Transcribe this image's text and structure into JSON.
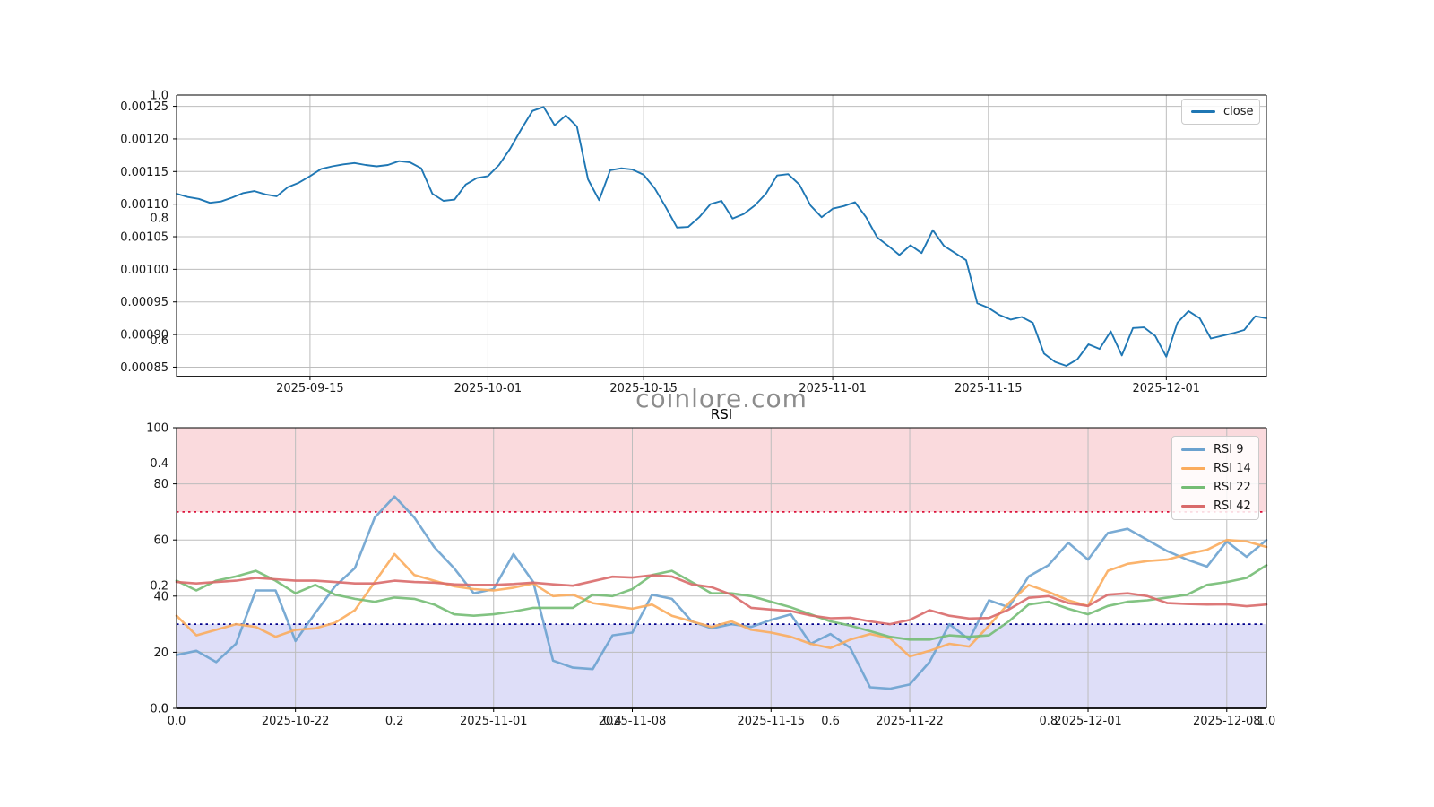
{
  "watermark": "coinlore.com",
  "overlay_axis": {
    "x_ticks": [
      "0.0",
      "0.2",
      "0.4",
      "0.6",
      "0.8",
      "1.0"
    ],
    "y_ticks": [
      "0.0",
      "0.2",
      "0.4",
      "0.6",
      "0.8",
      "1.0"
    ]
  },
  "colors": {
    "close_line": "#1f77b4",
    "rsi9_line": "#6ba2cf",
    "rsi14_line": "#fbac5d",
    "rsi22_line": "#74bd74",
    "rsi42_line": "#d96a6a",
    "overbought_fill": "#fadadd",
    "oversold_fill": "#dedef8",
    "overbought_dotted": "#dc143c",
    "oversold_dotted": "#00008b",
    "grid": "#bdbdbd"
  },
  "chart_data": [
    {
      "type": "line",
      "title": "",
      "legend_position": "upper right",
      "ylim": [
        0.0008355,
        0.0012673
      ],
      "y_ticks": [
        "0.00085",
        "0.00090",
        "0.00095",
        "0.00100",
        "0.00105",
        "0.00110",
        "0.00115",
        "0.00120",
        "0.00125"
      ],
      "x_ticks": [
        "2025-09-15",
        "2025-10-01",
        "2025-10-15",
        "2025-11-01",
        "2025-11-15",
        "2025-12-01"
      ],
      "dates": [
        "2025-09-03",
        "2025-09-04",
        "2025-09-05",
        "2025-09-06",
        "2025-09-07",
        "2025-09-08",
        "2025-09-09",
        "2025-09-10",
        "2025-09-11",
        "2025-09-12",
        "2025-09-13",
        "2025-09-14",
        "2025-09-15",
        "2025-09-16",
        "2025-09-17",
        "2025-09-18",
        "2025-09-19",
        "2025-09-20",
        "2025-09-21",
        "2025-09-22",
        "2025-09-23",
        "2025-09-24",
        "2025-09-25",
        "2025-09-26",
        "2025-09-27",
        "2025-09-28",
        "2025-09-29",
        "2025-09-30",
        "2025-10-01",
        "2025-10-02",
        "2025-10-03",
        "2025-10-04",
        "2025-10-05",
        "2025-10-06",
        "2025-10-07",
        "2025-10-08",
        "2025-10-09",
        "2025-10-10",
        "2025-10-11",
        "2025-10-12",
        "2025-10-13",
        "2025-10-14",
        "2025-10-15",
        "2025-10-16",
        "2025-10-17",
        "2025-10-18",
        "2025-10-19",
        "2025-10-20",
        "2025-10-21",
        "2025-10-22",
        "2025-10-23",
        "2025-10-24",
        "2025-10-25",
        "2025-10-26",
        "2025-10-27",
        "2025-10-28",
        "2025-10-29",
        "2025-10-30",
        "2025-10-31",
        "2025-11-01",
        "2025-11-02",
        "2025-11-03",
        "2025-11-04",
        "2025-11-05",
        "2025-11-06",
        "2025-11-07",
        "2025-11-08",
        "2025-11-09",
        "2025-11-10",
        "2025-11-11",
        "2025-11-12",
        "2025-11-13",
        "2025-11-14",
        "2025-11-15",
        "2025-11-16",
        "2025-11-17",
        "2025-11-18",
        "2025-11-19",
        "2025-11-20",
        "2025-11-21",
        "2025-11-22",
        "2025-11-23",
        "2025-11-24",
        "2025-11-25",
        "2025-11-26",
        "2025-11-27",
        "2025-11-28",
        "2025-11-29",
        "2025-11-30",
        "2025-12-01",
        "2025-12-02",
        "2025-12-03",
        "2025-12-04",
        "2025-12-05",
        "2025-12-06",
        "2025-12-07",
        "2025-12-08",
        "2025-12-09",
        "2025-12-10"
      ],
      "series": [
        {
          "name": "close",
          "color": "#1f77b4",
          "values": [
            0.001116,
            0.001111,
            0.001108,
            0.001102,
            0.001104,
            0.00111,
            0.001117,
            0.00112,
            0.001115,
            0.001112,
            0.001126,
            0.001133,
            0.001143,
            0.001154,
            0.001158,
            0.001161,
            0.001163,
            0.00116,
            0.001158,
            0.00116,
            0.001166,
            0.001164,
            0.001155,
            0.001116,
            0.001105,
            0.001107,
            0.00113,
            0.00114,
            0.001143,
            0.00116,
            0.001185,
            0.001215,
            0.001243,
            0.001249,
            0.001221,
            0.001236,
            0.001219,
            0.001138,
            0.001106,
            0.001152,
            0.001155,
            0.001153,
            0.001145,
            0.001124,
            0.001095,
            0.001064,
            0.001065,
            0.00108,
            0.0011,
            0.001105,
            0.001078,
            0.001085,
            0.001098,
            0.001116,
            0.001144,
            0.001146,
            0.00113,
            0.001098,
            0.00108,
            0.001093,
            0.001097,
            0.001103,
            0.00108,
            0.001049,
            0.001036,
            0.001022,
            0.001037,
            0.001025,
            0.00106,
            0.001036,
            0.001025,
            0.001014,
            0.000948,
            0.000941,
            0.00093,
            0.000923,
            0.000927,
            0.000918,
            0.000871,
            0.000858,
            0.000852,
            0.000862,
            0.000885,
            0.000878,
            0.000905,
            0.000868,
            0.00091,
            0.000911,
            0.000898,
            0.000866,
            0.000918,
            0.000936,
            0.000925,
            0.000894,
            0.000898,
            0.000902,
            0.000907,
            0.000928,
            0.000925
          ]
        }
      ]
    },
    {
      "type": "line",
      "title": "RSI",
      "legend_position": "upper right",
      "ylim": [
        0,
        100
      ],
      "y_ticks": [
        "0",
        "20",
        "40",
        "60",
        "80",
        "100"
      ],
      "x_ticks": [
        "2025-10-22",
        "2025-11-01",
        "2025-11-08",
        "2025-11-15",
        "2025-11-22",
        "2025-12-01",
        "2025-12-08"
      ],
      "zones": [
        {
          "label": "overbought",
          "from": 70,
          "to": 100,
          "fill": "#fadadd"
        },
        {
          "label": "oversold",
          "from": 0,
          "to": 30,
          "fill": "#dedef8"
        }
      ],
      "hlines": [
        {
          "y": 70,
          "color": "#dc143c",
          "style": "dotted"
        },
        {
          "y": 30,
          "color": "#00008b",
          "style": "dotted"
        }
      ],
      "dates": [
        "2025-10-16",
        "2025-10-17",
        "2025-10-18",
        "2025-10-19",
        "2025-10-20",
        "2025-10-21",
        "2025-10-22",
        "2025-10-23",
        "2025-10-24",
        "2025-10-25",
        "2025-10-26",
        "2025-10-27",
        "2025-10-28",
        "2025-10-29",
        "2025-10-30",
        "2025-10-31",
        "2025-11-01",
        "2025-11-02",
        "2025-11-03",
        "2025-11-04",
        "2025-11-05",
        "2025-11-06",
        "2025-11-07",
        "2025-11-08",
        "2025-11-09",
        "2025-11-10",
        "2025-11-11",
        "2025-11-12",
        "2025-11-13",
        "2025-11-14",
        "2025-11-15",
        "2025-11-16",
        "2025-11-17",
        "2025-11-18",
        "2025-11-19",
        "2025-11-20",
        "2025-11-21",
        "2025-11-22",
        "2025-11-23",
        "2025-11-24",
        "2025-11-25",
        "2025-11-26",
        "2025-11-27",
        "2025-11-28",
        "2025-11-29",
        "2025-11-30",
        "2025-12-01",
        "2025-12-02",
        "2025-12-03",
        "2025-12-04",
        "2025-12-05",
        "2025-12-06",
        "2025-12-07",
        "2025-12-08",
        "2025-12-09",
        "2025-12-10"
      ],
      "series": [
        {
          "name": "RSI 9",
          "color": "#6ba2cf",
          "values": [
            19,
            20.5,
            16.5,
            23,
            42,
            42,
            24,
            34,
            43.5,
            50,
            68,
            75.5,
            68,
            57.5,
            50,
            41,
            42.5,
            55,
            45,
            17,
            14.5,
            14,
            26,
            27,
            40.5,
            39,
            31,
            28.5,
            30,
            29,
            31.5,
            33.5,
            23,
            26.5,
            21.5,
            7.5,
            7,
            8.5,
            16.5,
            30,
            24.5,
            38.5,
            36,
            47,
            51,
            59,
            53,
            62.5,
            64,
            60,
            56,
            53,
            50.5,
            59.5,
            54,
            60
          ]
        },
        {
          "name": "RSI 14",
          "color": "#fbac5d",
          "values": [
            33,
            26,
            28,
            30,
            29,
            25.5,
            28,
            28.5,
            30.5,
            35,
            45,
            55,
            47.5,
            45.5,
            43.5,
            42.5,
            42,
            43,
            44.5,
            40,
            40.5,
            37.5,
            36.5,
            35.5,
            37,
            33,
            31,
            29,
            31,
            28,
            27,
            25.5,
            23,
            21.5,
            24.5,
            26.5,
            25,
            18.5,
            20.5,
            23,
            22,
            29.5,
            37.5,
            44,
            41.5,
            38.5,
            36.5,
            49,
            51.5,
            52.5,
            53,
            55,
            56.5,
            60,
            59.5,
            57.5
          ]
        },
        {
          "name": "RSI 22",
          "color": "#74bd74",
          "values": [
            45.5,
            42,
            45.5,
            47,
            49,
            45.5,
            41,
            44,
            40.5,
            39,
            38,
            39.5,
            39,
            37,
            33.5,
            33,
            33.5,
            34.5,
            35.8,
            35.8,
            35.8,
            40.5,
            40,
            42.5,
            47.5,
            49,
            45,
            41,
            41,
            40,
            38,
            36,
            33.5,
            31,
            29.5,
            27.5,
            25.5,
            24.5,
            24.5,
            26,
            25.5,
            26,
            31,
            37,
            38,
            35.5,
            33.5,
            36.5,
            38,
            38.5,
            39.5,
            40.5,
            44,
            45,
            46.5,
            51
          ]
        },
        {
          "name": "RSI 42",
          "color": "#d96a6a",
          "values": [
            45,
            44.5,
            45,
            45.5,
            46.5,
            46,
            45.5,
            45.5,
            45,
            44.5,
            44.5,
            45.5,
            45,
            44.8,
            44.2,
            44,
            44,
            44.3,
            44.8,
            44.2,
            43.7,
            45.3,
            46.9,
            46.6,
            47.4,
            47,
            44.2,
            43.2,
            40.5,
            35.8,
            35.2,
            34.7,
            33.1,
            32.1,
            32.3,
            31,
            30,
            31.5,
            35,
            33,
            32,
            32.2,
            35.2,
            39.4,
            40,
            37.5,
            36.5,
            40.5,
            41,
            40,
            37.5,
            37.2,
            37,
            37.1,
            36.4,
            37
          ]
        }
      ]
    }
  ]
}
